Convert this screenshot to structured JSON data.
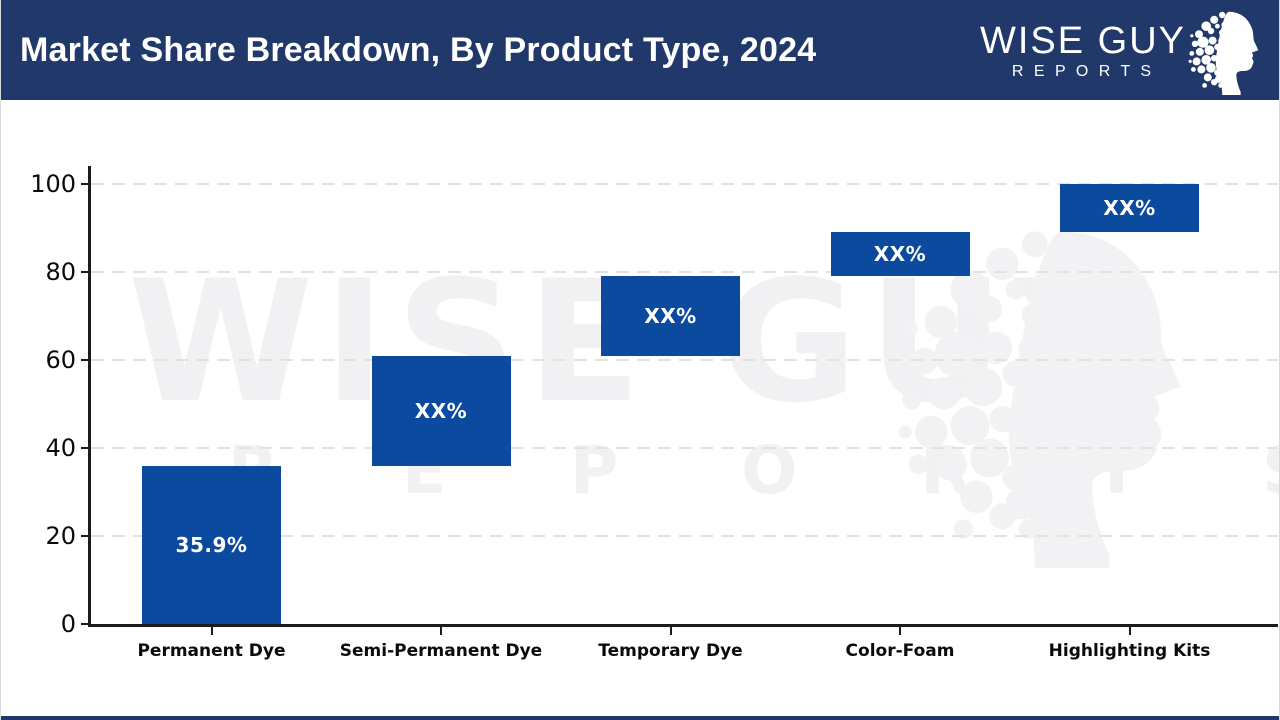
{
  "header": {
    "title": "Market Share Breakdown, By Product Type, 2024",
    "logo": {
      "name_line": "WISE GUY",
      "sub_line": "R E P O R T S"
    }
  },
  "watermark": {
    "name_line": "WISE GUY",
    "sub_line": "R E P O R T S"
  },
  "colors": {
    "header_bg": "#21386b",
    "footer_bg": "#21386b",
    "bar": "#0b4a9e",
    "bar_label_text": "#ffffff",
    "title_text": "#ffffff",
    "axis": "#1c1c1c",
    "gridline": "#e2e2e2",
    "watermark": "#f1f1f3"
  },
  "chart_data": {
    "type": "bar",
    "subtype": "waterfall",
    "title": "Market Share Breakdown, By Product Type, 2024",
    "categories": [
      "Permanent Dye",
      "Semi-Permanent Dye",
      "Temporary Dye",
      "Color-Foam",
      "Highlighting Kits"
    ],
    "segments": [
      {
        "category": "Permanent Dye",
        "start": 0,
        "end": 35.9,
        "size": 35.9,
        "value_label": "35.9%"
      },
      {
        "category": "Semi-Permanent Dye",
        "start": 35.9,
        "end": 61,
        "size": 25.1,
        "value_label": "XX%"
      },
      {
        "category": "Temporary Dye",
        "start": 61,
        "end": 79,
        "size": 18,
        "value_label": "XX%"
      },
      {
        "category": "Color-Foam",
        "start": 79,
        "end": 89,
        "size": 10,
        "value_label": "XX%"
      },
      {
        "category": "Highlighting Kits",
        "start": 89,
        "end": 100,
        "size": 11,
        "value_label": "XX%"
      }
    ],
    "yticks": [
      0,
      20,
      40,
      60,
      80,
      100
    ],
    "ylim": [
      0,
      103.8
    ],
    "xlabel": "",
    "ylabel": "",
    "grid": "horizontal-dashed",
    "legend": "none"
  }
}
